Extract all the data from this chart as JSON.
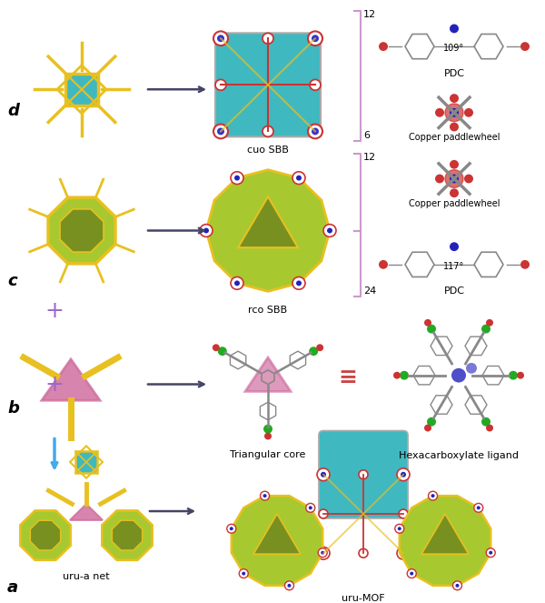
{
  "panel_labels": [
    "a",
    "b",
    "c",
    "d"
  ],
  "section_a": {
    "left_label": "cuo SBB",
    "right_labels": [
      "12",
      "6"
    ],
    "right_captions": [
      "PDC",
      "Copper paddlewheel"
    ],
    "right_angles": [
      "109°",
      ""
    ]
  },
  "section_b": {
    "left_label": "rco SBB",
    "right_labels": [
      "12",
      "24"
    ],
    "right_captions": [
      "Copper paddlewheel",
      "PDC"
    ],
    "right_angles": [
      "",
      "117°"
    ]
  },
  "section_c": {
    "center_label": "Triangular core",
    "right_label": "Hexacarboxylate ligand",
    "equiv_symbol": "≡"
  },
  "section_d": {
    "left_label": "uru-a net",
    "right_label": "uru-MOF"
  },
  "arrow_color": "#444466",
  "plus_color": "#9966cc",
  "bracket_color": "#cc99cc",
  "down_arrow_color": "#44aaee",
  "colors": {
    "yellow": "#e8c020",
    "teal": "#40b8c0",
    "lime": "#a8c830",
    "dark_lime": "#789020",
    "pink": "#d070a0",
    "white": "#ffffff",
    "background": "#ffffff"
  }
}
